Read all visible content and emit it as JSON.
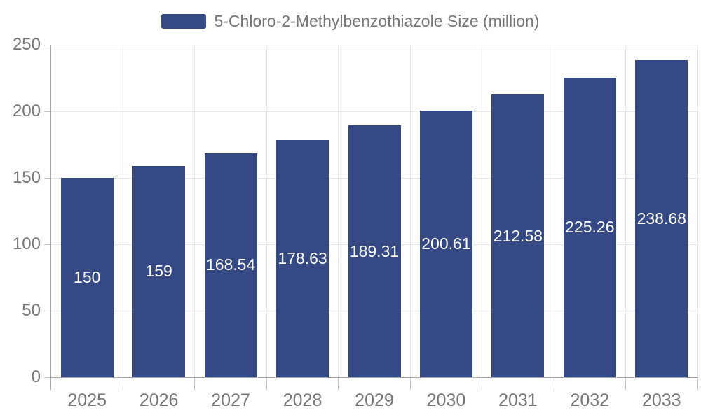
{
  "legend": {
    "label": "5-Chloro-2-Methylbenzothiazole Size (million)"
  },
  "chart_data": {
    "type": "bar",
    "title": "5-Chloro-2-Methylbenzothiazole Size (million)",
    "series_name": "5-Chloro-2-Methylbenzothiazole Size (million)",
    "categories": [
      "2025",
      "2026",
      "2027",
      "2028",
      "2029",
      "2030",
      "2031",
      "2032",
      "2033"
    ],
    "values": [
      150,
      159,
      168.54,
      178.63,
      189.31,
      200.61,
      212.58,
      225.26,
      238.68
    ],
    "value_labels": [
      "150",
      "159",
      "168.54",
      "178.63",
      "189.31",
      "200.61",
      "212.58",
      "225.26",
      "238.68"
    ],
    "xlabel": "",
    "ylabel": "",
    "ylim": [
      0,
      250
    ],
    "y_ticks": [
      0,
      50,
      100,
      150,
      200,
      250
    ],
    "grid": true,
    "legend_position": "top-center",
    "colors": {
      "bar": "#354a84",
      "bar_label": "#ffffff",
      "axis_text": "#757575",
      "axis_line": "#a6a6a6",
      "tick": "#c4c4c4",
      "gridline": "#e7e7e7",
      "background": "#ffffff"
    }
  }
}
